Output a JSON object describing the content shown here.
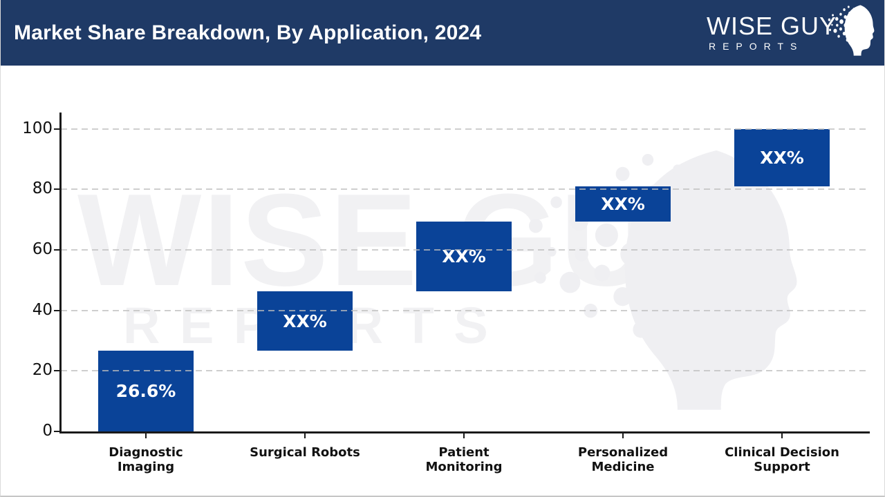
{
  "header": {
    "title": "Market Share Breakdown, By Application, 2024",
    "bg_color": "#1f3a66",
    "logo": {
      "line1": "WISE GUY",
      "line2": "REPORTS"
    }
  },
  "watermark": {
    "line1": "WISE GUY",
    "line2": "R E P O R T S",
    "color": "#f1f1f3"
  },
  "chart_data": {
    "type": "bar",
    "subtype": "waterfall",
    "title": "Market Share Breakdown, By Application, 2024",
    "xlabel": "",
    "ylabel": "",
    "categories": [
      "Diagnostic Imaging",
      "Surgical Robots",
      "Patient Monitoring",
      "Personalized Medicine",
      "Clinical Decision Support"
    ],
    "segments": [
      {
        "category": "Diagnostic Imaging",
        "start": 0,
        "end": 26.6,
        "label": "26.6%"
      },
      {
        "category": "Surgical Robots",
        "start": 26.6,
        "end": 46.4,
        "label": "XX%"
      },
      {
        "category": "Patient Monitoring",
        "start": 46.4,
        "end": 69.3,
        "label": "XX%"
      },
      {
        "category": "Personalized Medicine",
        "start": 69.3,
        "end": 81.0,
        "label": "XX%"
      },
      {
        "category": "Clinical Decision Support",
        "start": 81.0,
        "end": 100.0,
        "label": "XX%"
      }
    ],
    "yticks": [
      0,
      20,
      40,
      60,
      80,
      100
    ],
    "ytick_labels": [
      "0",
      "20",
      "40",
      "60",
      "80",
      "100"
    ],
    "ylim": [
      0,
      105
    ],
    "grid": true,
    "grid_style": "dashed",
    "legend": false,
    "bar_color": "#0a4398",
    "bar_label_color": "#ffffff",
    "axis_color": "#1a1a1a",
    "grid_color": "#cccccc"
  }
}
